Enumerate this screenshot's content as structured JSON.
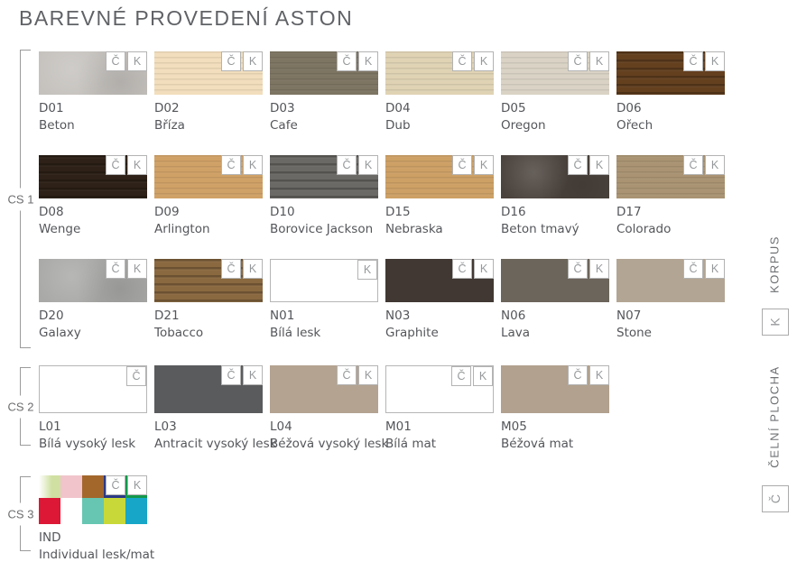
{
  "title": "BAREVNÉ PROVEDENÍ ASTON",
  "legend": {
    "korpus_label": "KORPUS",
    "korpus_key": "K",
    "celni_label": "ČELNÍ PLOCHA",
    "celni_key": "Č"
  },
  "groups": [
    {
      "label": "CS 1",
      "rows": [
        [
          {
            "code": "D01",
            "name": "Beton",
            "color": "#c5c2be",
            "texture": "stone",
            "badges": [
              "Č",
              "K"
            ]
          },
          {
            "code": "D02",
            "name": "Bříza",
            "color": "#f2debc",
            "texture": "wood",
            "badges": [
              "Č",
              "K"
            ]
          },
          {
            "code": "D03",
            "name": "Cafe",
            "color": "#7d7462",
            "texture": "wood",
            "badges": [
              "Č",
              "K"
            ]
          },
          {
            "code": "D04",
            "name": "Dub",
            "color": "#e0d3b4",
            "texture": "wood",
            "badges": [
              "Č",
              "K"
            ]
          },
          {
            "code": "D05",
            "name": "Oregon",
            "color": "#dad3c5",
            "texture": "wood",
            "badges": [
              "Č",
              "K"
            ]
          },
          {
            "code": "D06",
            "name": "Ořech",
            "color": "#64401f",
            "texture": "wood-dark",
            "badges": [
              "Č",
              "K"
            ]
          }
        ],
        [
          {
            "code": "D08",
            "name": "Wenge",
            "color": "#2e2117",
            "texture": "wood-dark",
            "badges": [
              "Č",
              "K"
            ]
          },
          {
            "code": "D09",
            "name": "Arlington",
            "color": "#d0a166",
            "texture": "wood",
            "badges": [
              "Č",
              "K"
            ]
          },
          {
            "code": "D10",
            "name": "Borovice Jackson",
            "color": "#6b6965",
            "texture": "wood-dark",
            "badges": [
              "Č",
              "K"
            ]
          },
          {
            "code": "D15",
            "name": "Nebraska",
            "color": "#cda065",
            "texture": "wood",
            "badges": [
              "Č",
              "K"
            ]
          },
          {
            "code": "D16",
            "name": "Beton tmavý",
            "color": "#4a423c",
            "texture": "stone",
            "badges": [
              "Č",
              "K"
            ]
          },
          {
            "code": "D17",
            "name": "Colorado",
            "color": "#a99372",
            "texture": "wood",
            "badges": [
              "Č",
              "K"
            ]
          }
        ],
        [
          {
            "code": "D20",
            "name": "Galaxy",
            "color": "#a9a9a7",
            "texture": "stone",
            "badges": [
              "Č",
              "K"
            ]
          },
          {
            "code": "D21",
            "name": "Tobacco",
            "color": "#8a6940",
            "texture": "wood-dark",
            "badges": [
              "Č",
              "K"
            ]
          },
          {
            "code": "N01",
            "name": "Bílá lesk",
            "color": "#ffffff",
            "bordered": true,
            "badges": [
              "K"
            ]
          },
          {
            "code": "N03",
            "name": "Graphite",
            "color": "#413833",
            "badges": [
              "Č",
              "K"
            ]
          },
          {
            "code": "N06",
            "name": "Lava",
            "color": "#6c655b",
            "badges": [
              "Č",
              "K"
            ]
          },
          {
            "code": "N07",
            "name": "Stone",
            "color": "#b3a593",
            "badges": [
              "Č",
              "K"
            ]
          }
        ]
      ]
    },
    {
      "label": "CS 2",
      "rows": [
        [
          {
            "code": "L01",
            "name": "Bílá vysoký lesk",
            "color": "#ffffff",
            "bordered": true,
            "badges": [
              "Č"
            ]
          },
          {
            "code": "L03",
            "name": "Antracit vysoký lesk",
            "color": "#595b5d",
            "badges": [
              "Č",
              "K"
            ]
          },
          {
            "code": "L04",
            "name": "Béžová vysoký lesk",
            "color": "#b4a391",
            "badges": [
              "Č",
              "K"
            ]
          },
          {
            "code": "M01",
            "name": "Bílá mat",
            "color": "#ffffff",
            "bordered": true,
            "badges": [
              "Č",
              "K"
            ]
          },
          {
            "code": "M05",
            "name": "Béžová mat",
            "color": "#b1a18e",
            "badges": [
              "Č",
              "K"
            ]
          }
        ]
      ]
    },
    {
      "label": "CS 3",
      "rows": [
        [
          {
            "code": "IND",
            "name": "Individual lesk/mat",
            "multi": true,
            "badges": [
              "Č",
              "K"
            ],
            "cells": [
              "#cfe0a2",
              "#f1c4cb",
              "#a3672c",
              "#2a3a86",
              "#13984a",
              "#dd1836",
              "#ffffff",
              "#66c6b1",
              "#c8d838",
              "#17a6c8"
            ]
          }
        ]
      ]
    }
  ]
}
